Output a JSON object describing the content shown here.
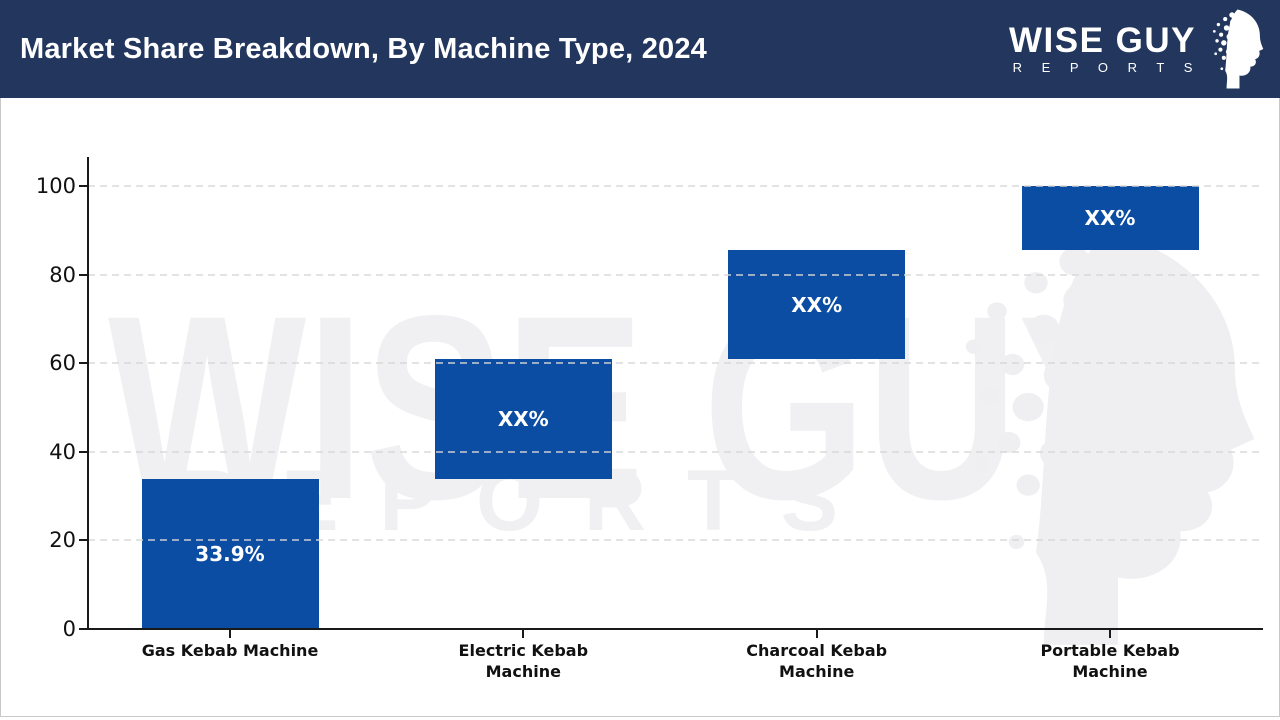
{
  "header": {
    "title": "Market Share Breakdown, By Machine Type, 2024",
    "logo": {
      "line1": "WISE GUY",
      "line2": "R E P O R T S"
    }
  },
  "watermark": {
    "line1": "WISE GUY",
    "line2": "R E P O R T S"
  },
  "colors": {
    "header_bg": "#22365E",
    "bar": "#0B4DA2",
    "bar_label": "#FFFFFF",
    "gridline": "#D7D7D7",
    "axis": "#1A1A1A",
    "watermark": "#EFEFF2"
  },
  "chart_data": {
    "type": "bar",
    "subtype": "waterfall",
    "title": "Market Share Breakdown, By Machine Type, 2024",
    "categories": [
      "Gas Kebab Machine",
      "Electric Kebab Machine",
      "Charcoal Kebab Machine",
      "Portable Kebab Machine"
    ],
    "label_lines": [
      [
        "Gas Kebab Machine"
      ],
      [
        "Electric Kebab",
        "Machine"
      ],
      [
        "Charcoal Kebab",
        "Machine"
      ],
      [
        "Portable Kebab",
        "Machine"
      ]
    ],
    "segments": [
      {
        "category": "Gas Kebab Machine",
        "start": 0,
        "end": 33.9,
        "label": "33.9%"
      },
      {
        "category": "Electric Kebab Machine",
        "start": 33.9,
        "end": 61.0,
        "label": "XX%"
      },
      {
        "category": "Charcoal Kebab Machine",
        "start": 61.0,
        "end": 85.5,
        "label": "XX%"
      },
      {
        "category": "Portable Kebab Machine",
        "start": 85.5,
        "end": 100,
        "label": "XX%"
      }
    ],
    "ylim": [
      0,
      100
    ],
    "yticks": [
      0,
      20,
      40,
      60,
      80,
      100
    ],
    "ytick_labels": [
      "0",
      "20",
      "40",
      "60",
      "80",
      "100"
    ],
    "grid": "horizontal-dashed",
    "legend": "none"
  }
}
